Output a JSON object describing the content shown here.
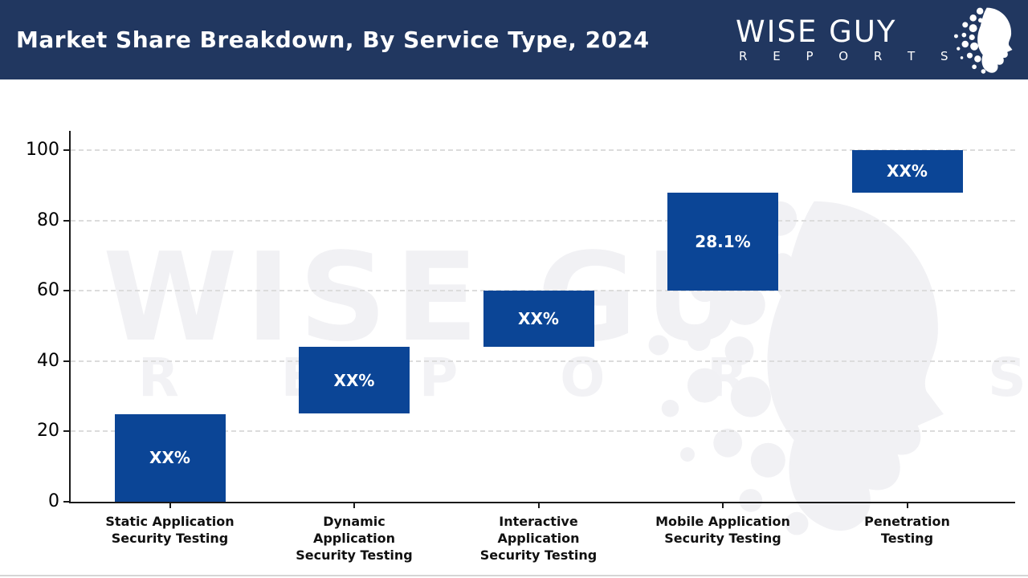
{
  "header": {
    "title": "Market Share Breakdown, By Service Type, 2024",
    "bg_color": "#213760",
    "logo": {
      "line1": "WISE GUY",
      "line2": "R E P O R T S"
    }
  },
  "watermark": {
    "line1": "WISE GUY",
    "line2": "R E P O R T S"
  },
  "chart_data": {
    "type": "bar",
    "subtype": "floating-waterfall",
    "title": "Market Share Breakdown, By Service Type, 2024",
    "categories": [
      "Static Application\nSecurity Testing",
      "Dynamic\nApplication\nSecurity Testing",
      "Interactive\nApplication\nSecurity Testing",
      "Mobile Application\nSecurity Testing",
      "Penetration\nTesting"
    ],
    "segments": [
      {
        "start": 0,
        "end": 25,
        "label": "XX%"
      },
      {
        "start": 25,
        "end": 44,
        "label": "XX%"
      },
      {
        "start": 44,
        "end": 60,
        "label": "XX%"
      },
      {
        "start": 60,
        "end": 88,
        "label": "28.1%"
      },
      {
        "start": 88,
        "end": 100,
        "label": "XX%"
      }
    ],
    "bar_color": "#0b4596",
    "bar_label_color": "#ffffff",
    "xlabel": "",
    "ylabel": "",
    "ylim": [
      0,
      100
    ],
    "yticks": [
      0,
      20,
      40,
      60,
      80,
      100
    ],
    "grid": "horizontal-dashed",
    "legend": "none"
  }
}
